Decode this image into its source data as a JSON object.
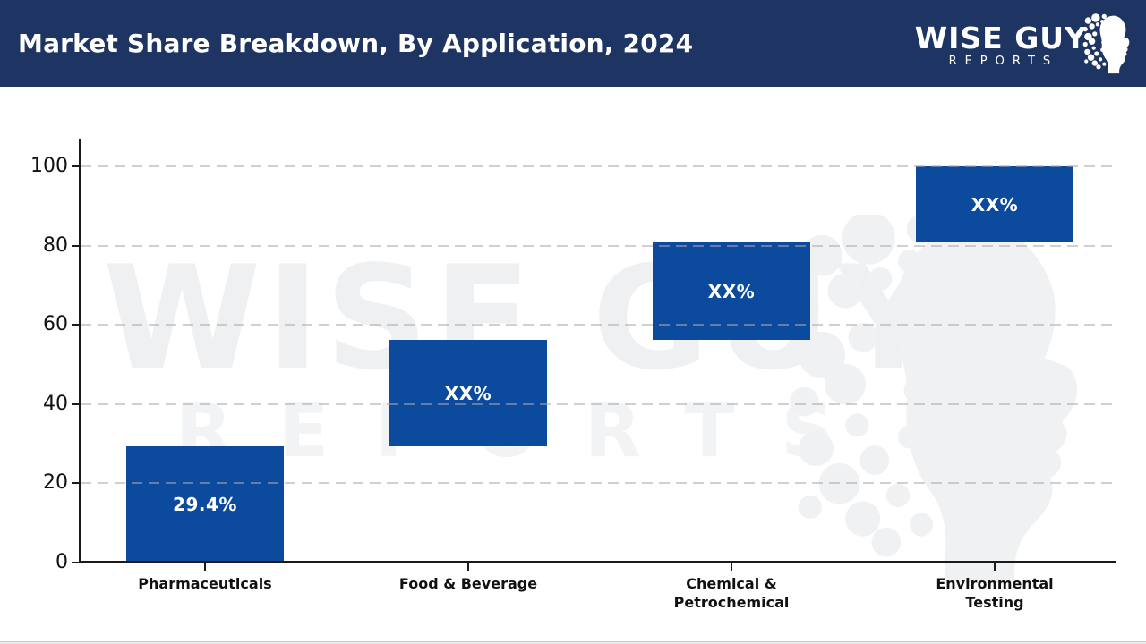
{
  "header": {
    "title": "Market Share Breakdown, By Application, 2024",
    "brand_line1": "WISE GUY",
    "brand_line2": "REPORTS",
    "bg_color": "#1e3563"
  },
  "watermark": {
    "line1": "WISE GUY",
    "line2": "REPORTS"
  },
  "chart_data": {
    "type": "bar",
    "subtype": "waterfall",
    "title": "Market Share Breakdown, By Application, 2024",
    "categories": [
      "Pharmaceuticals",
      "Food & Beverage",
      "Chemical & Petrochemical",
      "Environmental Testing"
    ],
    "segments": [
      {
        "category": "Pharmaceuticals",
        "start": 0,
        "end": 29.4,
        "value_label": "29.4%"
      },
      {
        "category": "Food & Beverage",
        "start": 29.4,
        "end": 56.1,
        "value_label": "XX%"
      },
      {
        "category": "Chemical & Petrochemical",
        "start": 56.1,
        "end": 80.7,
        "value_label": "XX%"
      },
      {
        "category": "Environmental Testing",
        "start": 80.7,
        "end": 100,
        "value_label": "XX%"
      }
    ],
    "y_ticks": [
      "0",
      "20",
      "40",
      "60",
      "80",
      "100"
    ],
    "ylim": [
      0,
      107
    ],
    "xlabel": "",
    "ylabel": "",
    "grid": "horizontal-dashed",
    "legend": "none",
    "bar_color": "#0c4a9e",
    "bar_label_color": "#ffffff",
    "axis_color": "#1a1a1a"
  }
}
